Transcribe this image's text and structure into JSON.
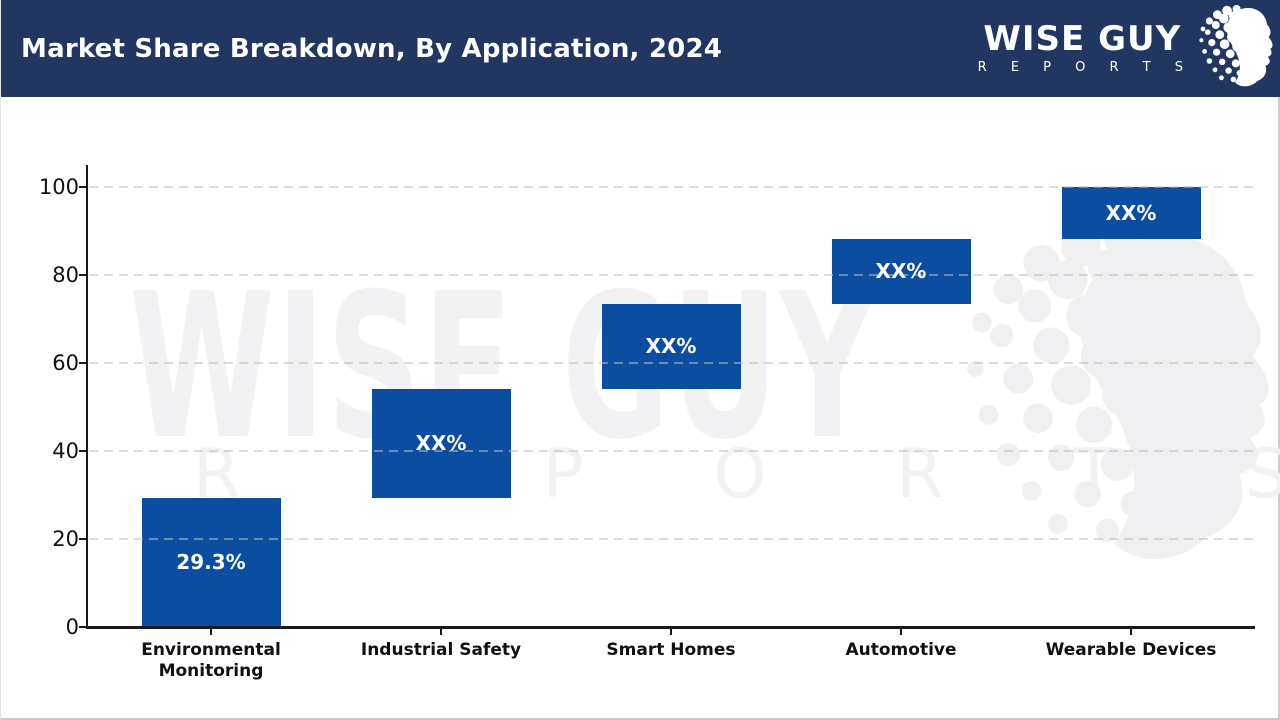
{
  "header": {
    "title": "Market Share Breakdown, By Application, 2024",
    "bg_color": "#213761",
    "logo": {
      "line1": "WISE GUY",
      "line2": "R E P O R T S"
    }
  },
  "watermark": {
    "line1": "WISE GUY",
    "line2": "R E P O R T S"
  },
  "chart_data": {
    "type": "bar",
    "subtype": "waterfall",
    "title": "Market Share Breakdown, By Application, 2024",
    "categories": [
      "Environmental Monitoring",
      "Industrial Safety",
      "Smart Homes",
      "Automotive",
      "Wearable Devices"
    ],
    "category_label_lines": [
      [
        "Environmental",
        "Monitoring"
      ],
      [
        "Industrial Safety"
      ],
      [
        "Smart Homes"
      ],
      [
        "Automotive"
      ],
      [
        "Wearable Devices"
      ]
    ],
    "segments": [
      {
        "category": "Environmental Monitoring",
        "start": 0,
        "end": 29.3,
        "label": "29.3%"
      },
      {
        "category": "Industrial Safety",
        "start": 29.3,
        "end": 54.0,
        "label": "XX%"
      },
      {
        "category": "Smart Homes",
        "start": 54.0,
        "end": 73.4,
        "label": "XX%"
      },
      {
        "category": "Automotive",
        "start": 73.4,
        "end": 88.1,
        "label": "XX%"
      },
      {
        "category": "Wearable Devices",
        "start": 88.1,
        "end": 100.0,
        "label": "XX%"
      }
    ],
    "xlabel": "",
    "ylabel": "",
    "yticks": [
      0,
      20,
      40,
      60,
      80,
      100
    ],
    "ylim": [
      0,
      100
    ],
    "grid": "horizontal-dashed",
    "legend": null,
    "bar_color": "#0b4da1",
    "bar_label_color": "#ffffff",
    "axis_color": "#1a1a1a"
  }
}
